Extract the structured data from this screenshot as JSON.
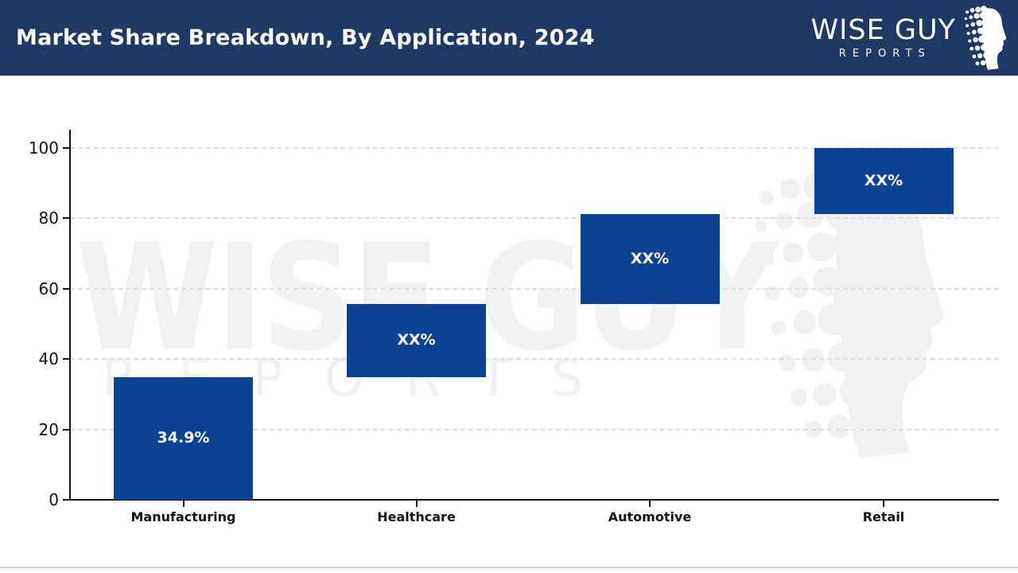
{
  "header": {
    "title": "Market Share Breakdown, By Application, 2024",
    "background": "#1f3864",
    "logo": {
      "line1": "WISE GUY",
      "line2": "REPORTS",
      "face_icon": "dotted-profile-face"
    }
  },
  "watermark": {
    "line1": "WISE GUY",
    "line2": "REPORTS",
    "face_icon": "dotted-profile-face",
    "color": "#f1f1f1"
  },
  "chart_data": {
    "type": "bar",
    "subtype": "waterfall",
    "title": "Market Share Breakdown, By Application, 2024",
    "xlabel": "",
    "ylabel": "",
    "ylim": [
      0,
      100
    ],
    "yticks": [
      0,
      20,
      40,
      60,
      80,
      100
    ],
    "grid": "horizontal-dashed",
    "legend": "none",
    "bar_color": "#0a4294",
    "bar_label_color": "#ffffff",
    "categories": [
      "Manufacturing",
      "Healthcare",
      "Automotive",
      "Retail"
    ],
    "series": [
      {
        "name": "Market Share",
        "segments": [
          {
            "category": "Manufacturing",
            "start": 0,
            "end": 34.9,
            "value": 34.9,
            "label": "34.9%"
          },
          {
            "category": "Healthcare",
            "start": 34.9,
            "end": 55.6,
            "value": 20.7,
            "label": "XX%"
          },
          {
            "category": "Automotive",
            "start": 55.6,
            "end": 81.2,
            "value": 25.6,
            "label": "XX%"
          },
          {
            "category": "Retail",
            "start": 81.2,
            "end": 100,
            "value": 18.8,
            "label": "XX%"
          }
        ]
      }
    ]
  }
}
